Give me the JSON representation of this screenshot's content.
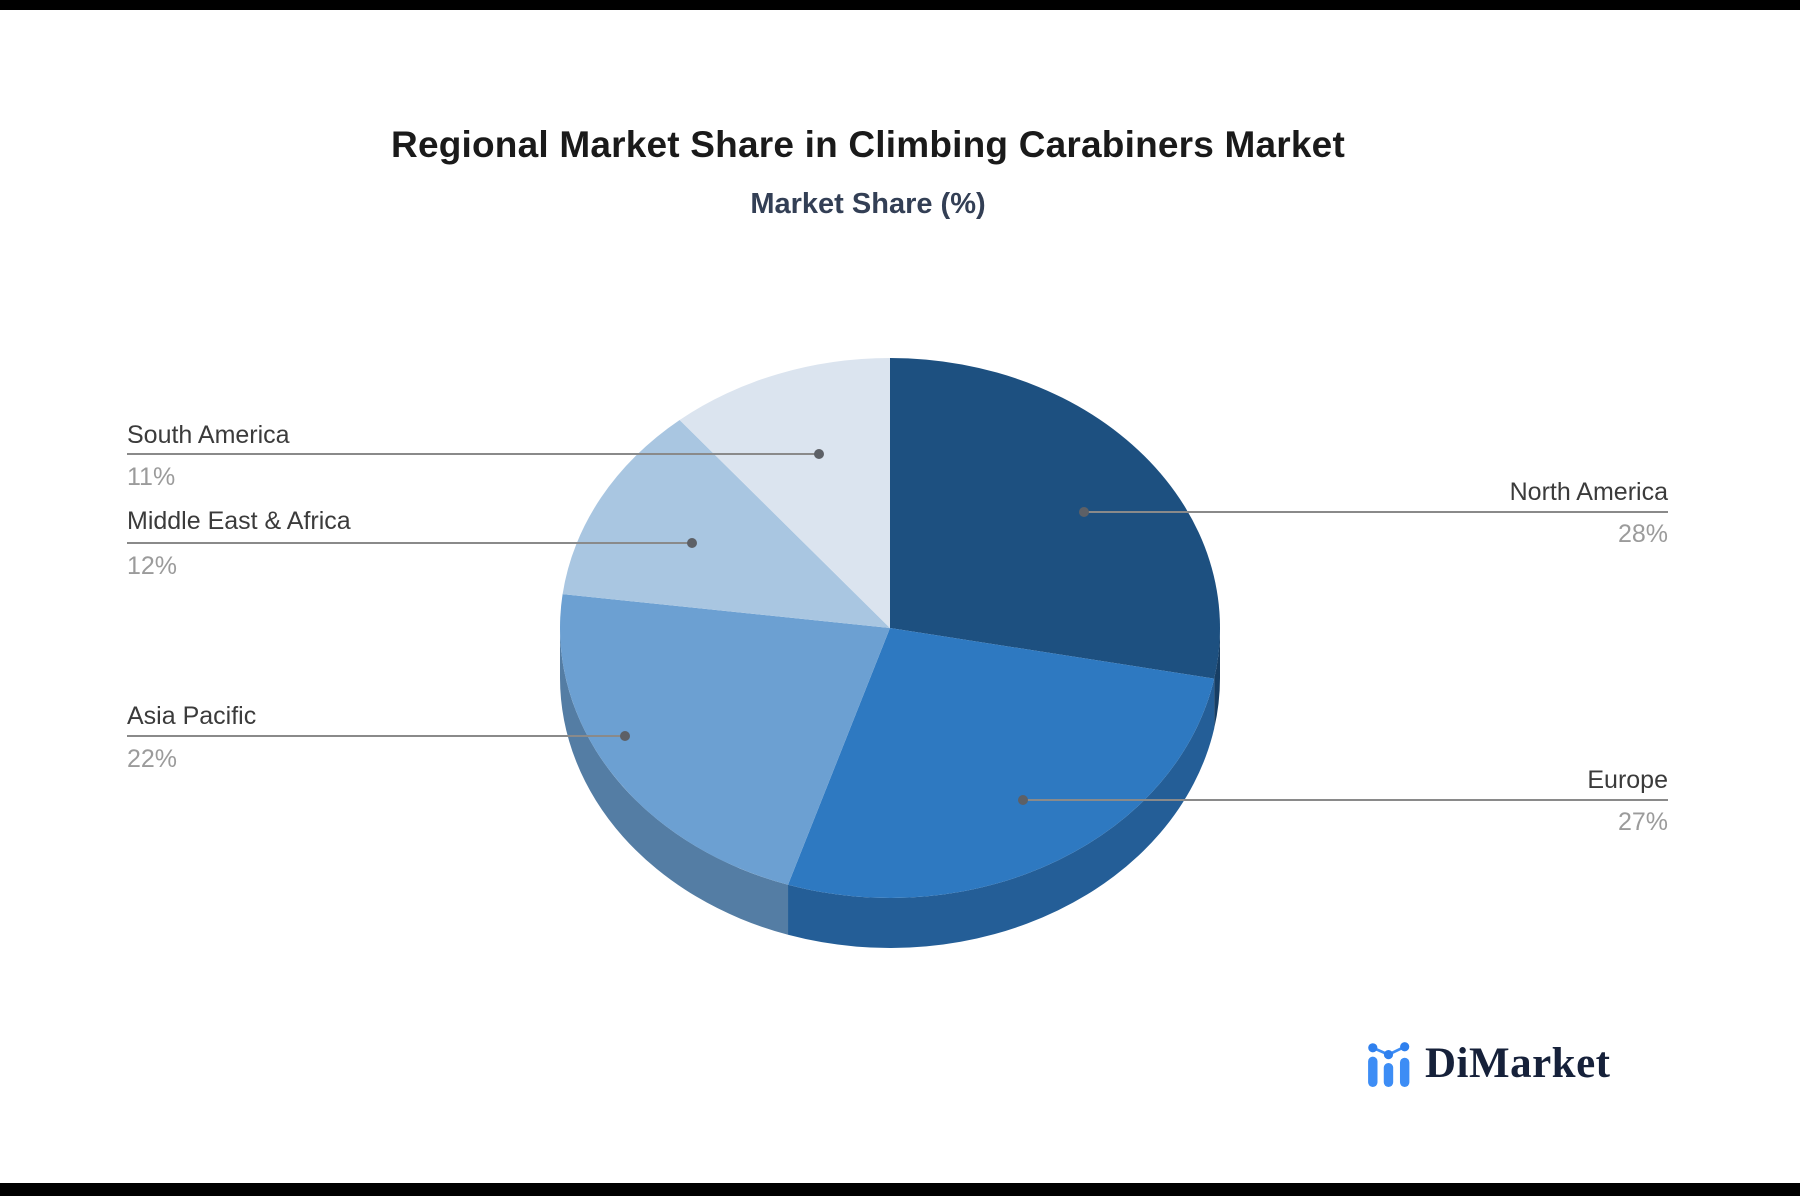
{
  "header": {
    "title": "Regional Market Share in Climbing Carabiners Market",
    "subtitle": "Market Share (%)"
  },
  "chart_data": {
    "type": "pie",
    "title": "Regional Market Share in Climbing Carabiners Market",
    "subtitle": "Market Share (%)",
    "unit": "%",
    "effect": "3d",
    "start_angle_deg": 0,
    "direction": "clockwise",
    "legend_position": "callout-labels",
    "slices": [
      {
        "label": "North America",
        "value": 28,
        "pct_text": "28%",
        "color": "#1d5080",
        "callout_side": "right"
      },
      {
        "label": "Europe",
        "value": 27,
        "pct_text": "27%",
        "color": "#2e79c1",
        "callout_side": "right"
      },
      {
        "label": "Asia Pacific",
        "value": 22,
        "pct_text": "22%",
        "color": "#6ca0d2",
        "callout_side": "left"
      },
      {
        "label": "Middle East & Africa",
        "value": 12,
        "pct_text": "12%",
        "color": "#a9c6e1",
        "callout_side": "left"
      },
      {
        "label": "South America",
        "value": 11,
        "pct_text": "11%",
        "color": "#dbe4ef",
        "callout_side": "left"
      }
    ]
  },
  "branding": {
    "logo_text": "DiMarket",
    "logo_icon": "mini-bar-line-chart-icon",
    "logo_icon_color": "#3d8df5",
    "logo_text_color": "#16213a"
  },
  "style": {
    "leader_line_color": "#8a8a8a",
    "callout_dot_color": "#5d6066",
    "label_color": "#3b3b3b",
    "value_color": "#9b9b9b",
    "title_color": "#1a1a1a",
    "subtitle_color": "#333f55",
    "background": "#ffffff",
    "letterbox_color": "#000000"
  }
}
